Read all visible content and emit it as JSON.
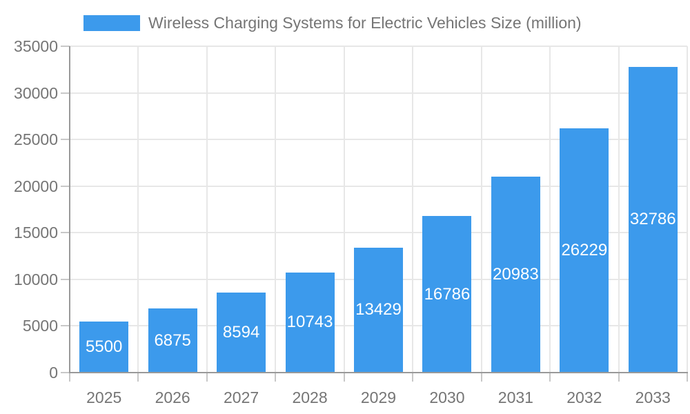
{
  "chart_data": {
    "type": "bar",
    "title": "Wireless Charging Systems for Electric Vehicles Size (million)",
    "categories": [
      "2025",
      "2026",
      "2027",
      "2028",
      "2029",
      "2030",
      "2031",
      "2032",
      "2033"
    ],
    "values": [
      5500,
      6875,
      8594,
      10743,
      13429,
      16786,
      20983,
      26229,
      32786
    ],
    "bar_labels": [
      "5500",
      "6875",
      "8594",
      "10743",
      "13429",
      "16786",
      "20983",
      "26229",
      "32786"
    ],
    "xlabel": "",
    "ylabel": "",
    "ylim": [
      0,
      35000
    ],
    "ytick_step": 5000,
    "yticks": [
      0,
      5000,
      10000,
      15000,
      20000,
      25000,
      30000,
      35000
    ],
    "ytick_labels": [
      "0",
      "5000",
      "10000",
      "15000",
      "20000",
      "25000",
      "30000",
      "35000"
    ],
    "grid": true,
    "legend_position": "top",
    "value_label_position": "center-inside",
    "colors": {
      "bar": "#3C9AEC",
      "bar_value_label": "#ffffff",
      "axis_line": "#999999",
      "tick_line": "#c8c8c8",
      "grid_line": "#e7e7e7",
      "text": "#757575",
      "background": "#ffffff"
    }
  }
}
